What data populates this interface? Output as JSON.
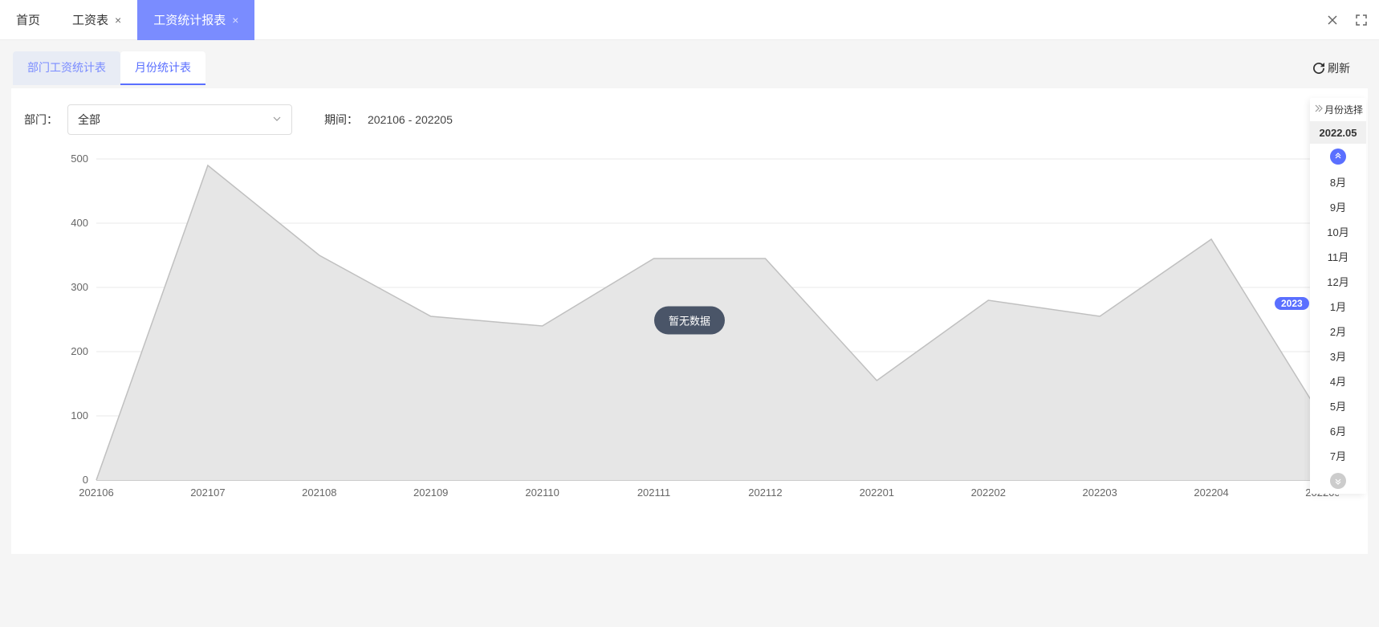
{
  "tabs": {
    "items": [
      {
        "label": "首页",
        "closable": false,
        "active": false
      },
      {
        "label": "工资表",
        "closable": true,
        "active": false
      },
      {
        "label": "工资统计报表",
        "closable": true,
        "active": true
      }
    ]
  },
  "subtabs": {
    "items": [
      {
        "label": "部门工资统计表",
        "active": false
      },
      {
        "label": "月份统计表",
        "active": true
      }
    ]
  },
  "refresh_label": "刷新",
  "filters": {
    "dept_label": "部门：",
    "dept_value": "全部",
    "period_label": "期间：",
    "period_value": "202106 - 202205"
  },
  "chart": {
    "type": "area",
    "tooltip_text": "暂无数据",
    "ylim": [
      0,
      500
    ],
    "ytick_step": 100,
    "yticks": [
      0,
      100,
      200,
      300,
      400,
      500
    ],
    "categories": [
      "202106",
      "202107",
      "202108",
      "202109",
      "202110",
      "202111",
      "202112",
      "202201",
      "202202",
      "202203",
      "202204",
      "202205"
    ],
    "values": [
      0,
      490,
      350,
      255,
      240,
      345,
      345,
      155,
      280,
      255,
      375,
      95
    ],
    "line_color": "#c0c0c0",
    "fill_color": "#e6e6e6",
    "axis_color": "#999999",
    "grid_color": "#e8e8e8",
    "label_fontsize": 13,
    "tick_color": "#666666",
    "background_color": "#ffffff"
  },
  "month_panel": {
    "title": "月份选择",
    "current": "2022.05",
    "year_badge": "2023",
    "items": [
      "8月",
      "9月",
      "10月",
      "11月",
      "12月",
      "1月",
      "2月",
      "3月",
      "4月",
      "5月",
      "6月",
      "7月"
    ]
  }
}
